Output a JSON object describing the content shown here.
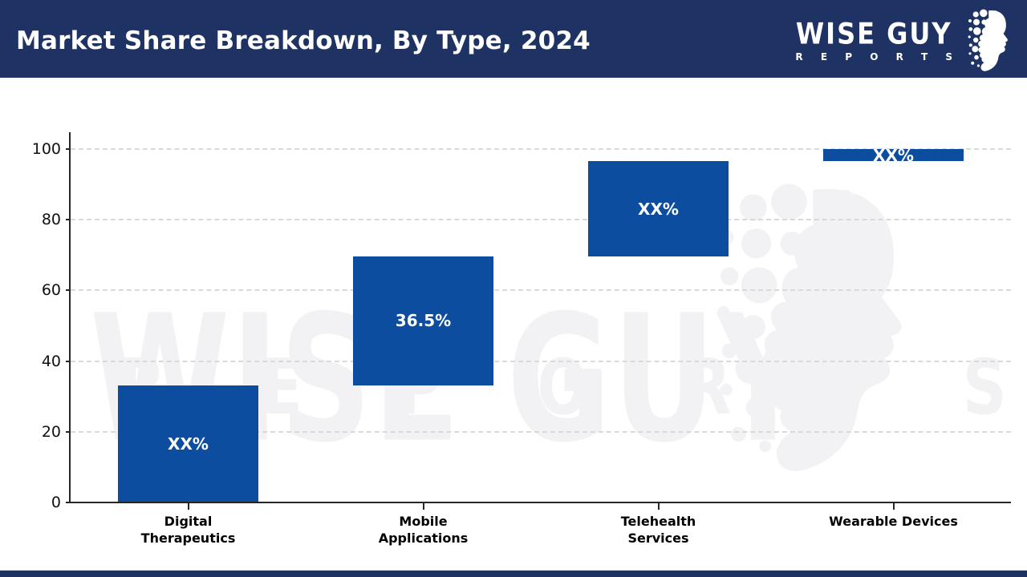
{
  "header": {
    "title": "Market Share Breakdown, By Type, 2024",
    "logo": {
      "line1": "WISE GUY",
      "line2": "R E P O R T S"
    }
  },
  "watermark": {
    "line1": "WISE GUY",
    "line2": "R E P O R T S"
  },
  "colors": {
    "header_bg": "#1e3264",
    "footer_bg": "#1e3264",
    "bar_fill": "#0c4da0",
    "bar_label": "#ffffff",
    "grid": "#d9d9d9",
    "axis": "#262626",
    "tick_label": "#111111",
    "watermark": "#f2f2f5",
    "background": "#ffffff"
  },
  "chart_data": {
    "type": "bar",
    "subtype": "waterfall",
    "title": "Market Share Breakdown, By Type, 2024",
    "unit": "%",
    "categories": [
      "Digital\nTherapeutics",
      "Mobile\nApplications",
      "Telehealth\nServices",
      "Wearable Devices"
    ],
    "segments": [
      {
        "category": "Digital Therapeutics",
        "start": 0,
        "end": 33.2,
        "value": 33.2,
        "label": "XX%"
      },
      {
        "category": "Mobile Applications",
        "start": 33.2,
        "end": 69.7,
        "value": 36.5,
        "label": "36.5%"
      },
      {
        "category": "Telehealth Services",
        "start": 69.7,
        "end": 96.5,
        "value": 26.8,
        "label": "XX%"
      },
      {
        "category": "Wearable Devices",
        "start": 96.5,
        "end": 100,
        "value": 3.5,
        "label": "XX%"
      }
    ],
    "xlabel": "",
    "ylabel": "",
    "ylim": [
      0,
      100
    ],
    "yticks": [
      0,
      20,
      40,
      60,
      80,
      100
    ],
    "grid": "horizontal dashed",
    "legend": "none"
  }
}
